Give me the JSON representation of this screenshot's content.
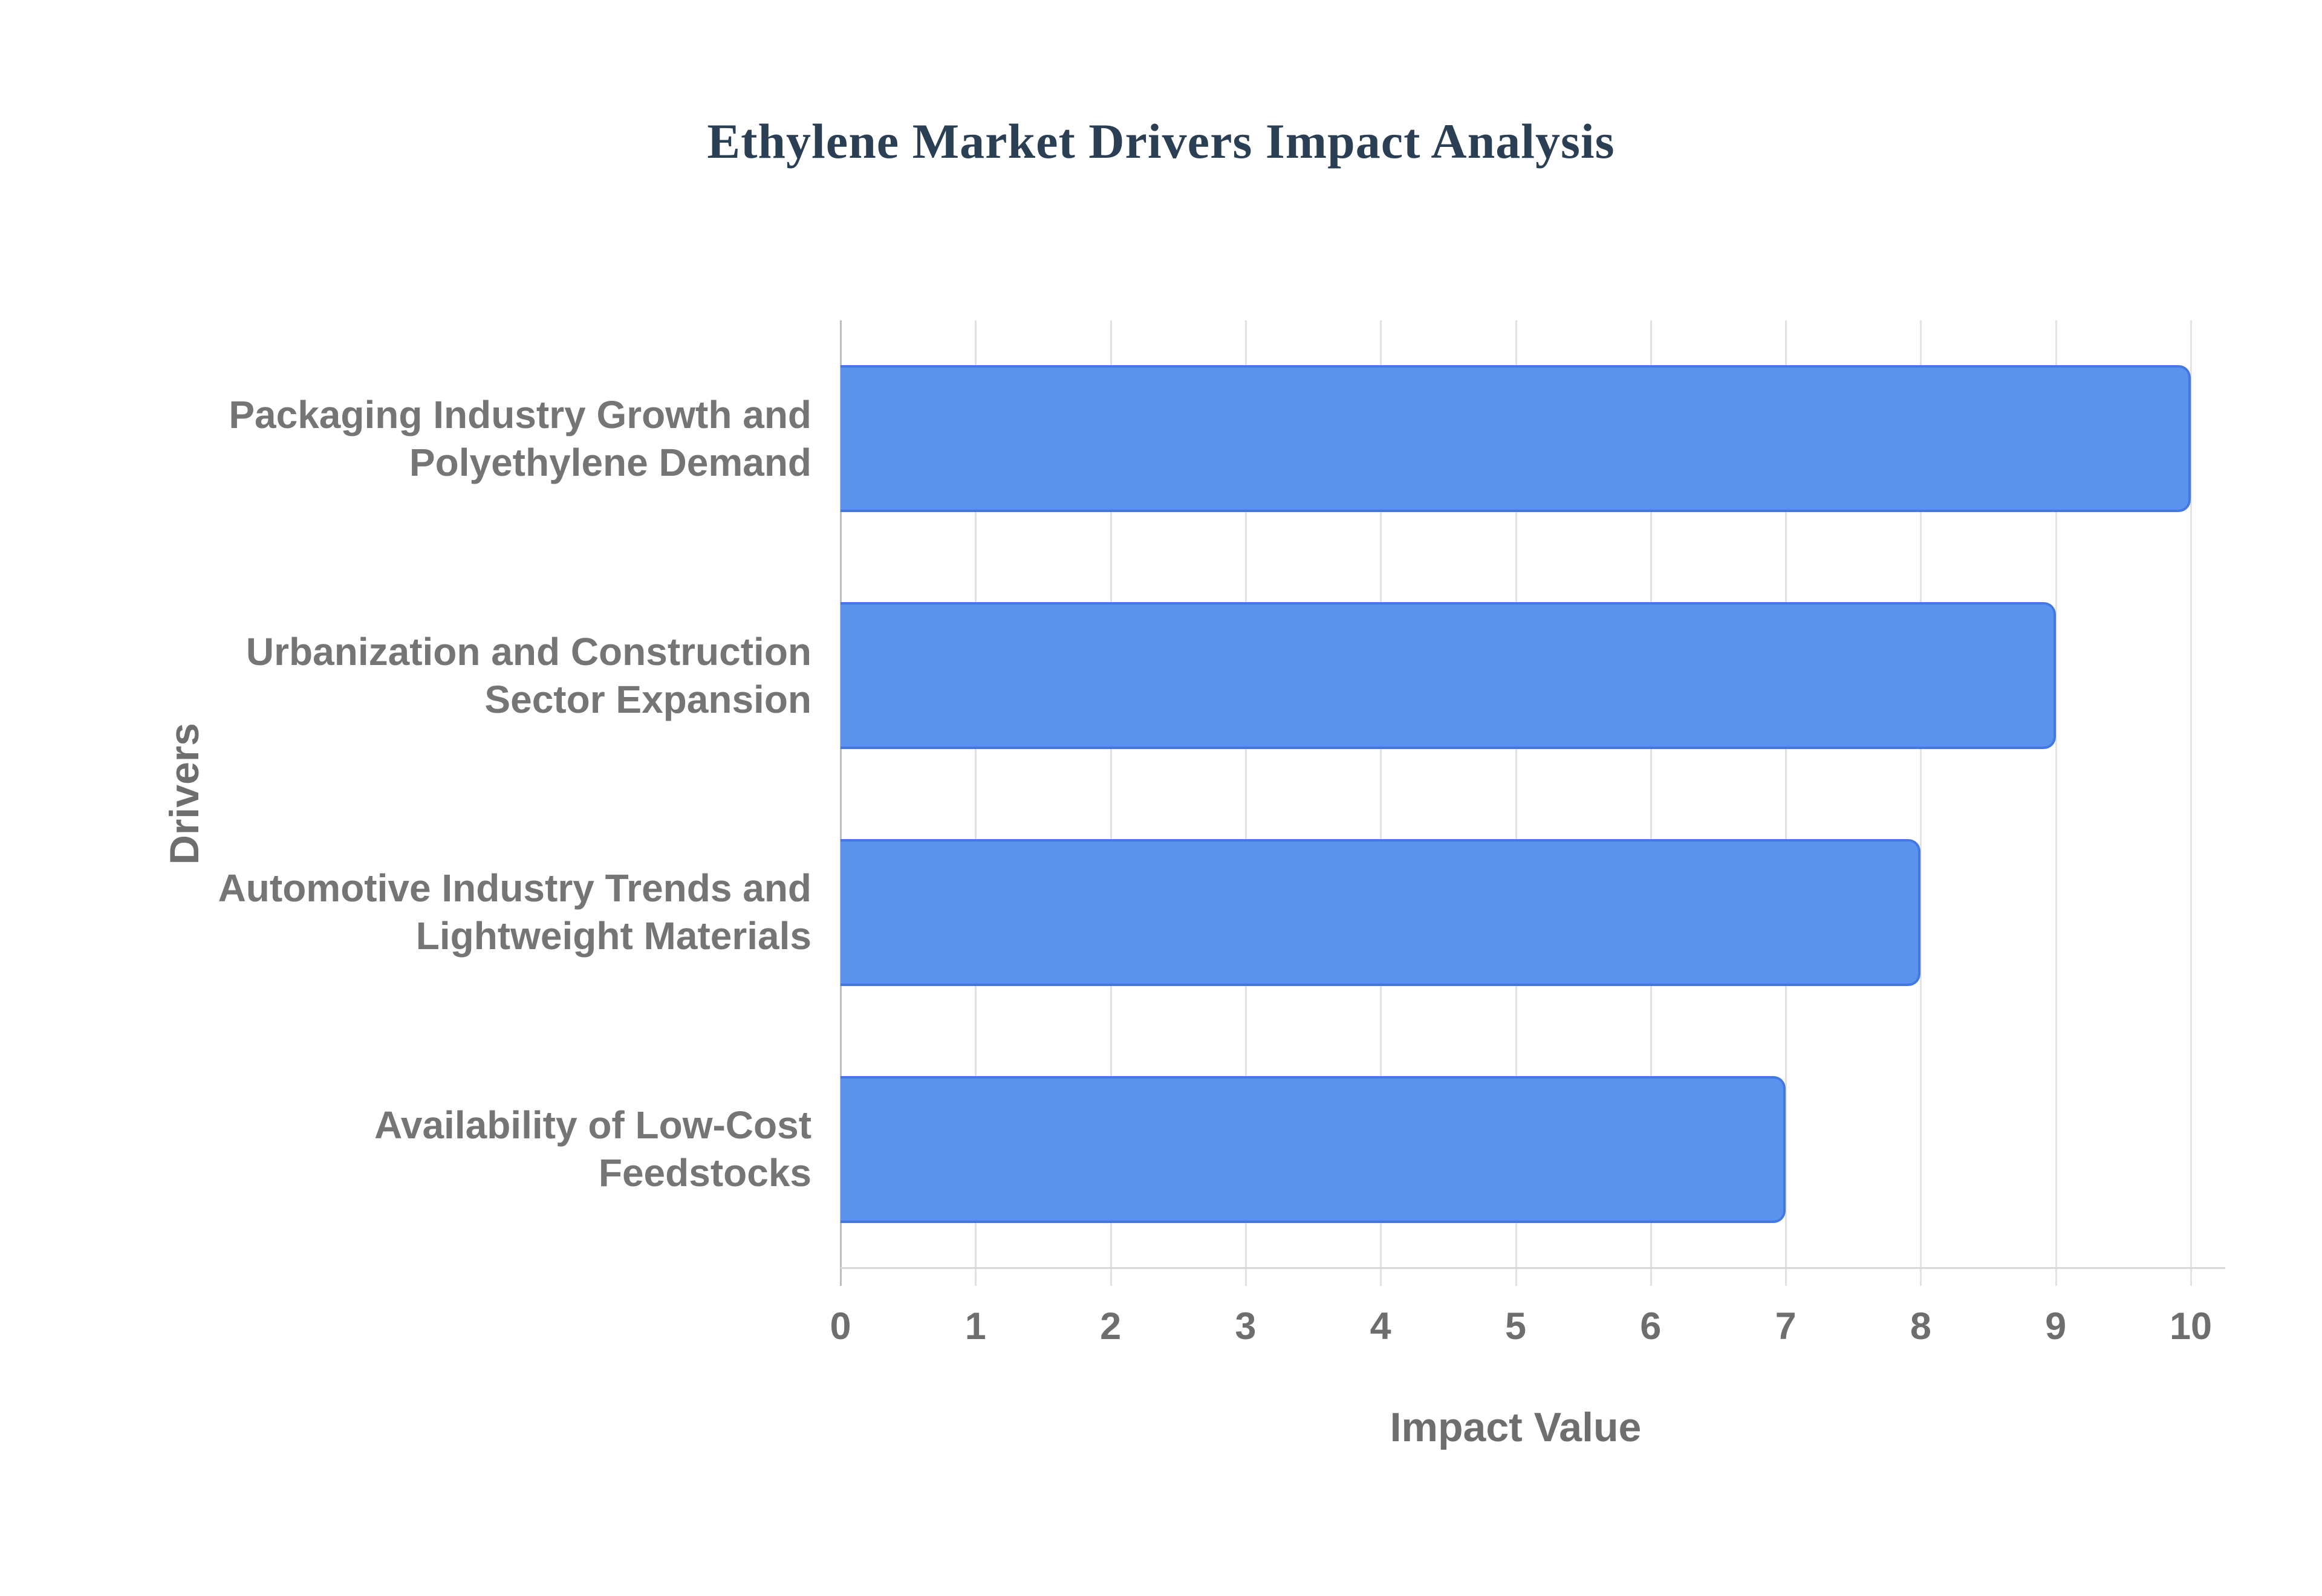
{
  "chart_data": {
    "type": "bar",
    "orientation": "horizontal",
    "title": "Ethylene Market Drivers Impact Analysis",
    "xlabel": "Impact Value",
    "ylabel": "Drivers",
    "categories": [
      "Packaging Industry Growth and Polyethylene Demand",
      "Urbanization and Construction Sector Expansion",
      "Automotive Industry Trends and Lightweight Materials",
      "Availability of Low-Cost Feedstocks"
    ],
    "categories_wrapped": [
      [
        "Packaging Industry Growth and",
        "Polyethylene Demand"
      ],
      [
        "Urbanization and Construction",
        "Sector Expansion"
      ],
      [
        "Automotive Industry Trends and",
        "Lightweight Materials"
      ],
      [
        "Availability of Low-Cost",
        "Feedstocks"
      ]
    ],
    "values": [
      10,
      9,
      8,
      7
    ],
    "xlim": [
      0,
      10
    ],
    "xticks": [
      0,
      1,
      2,
      3,
      4,
      5,
      6,
      7,
      8,
      9,
      10
    ],
    "grid": "vertical",
    "legend": "none",
    "colors": {
      "bar_fill": "#5b92ee",
      "bar_border": "#4377e2",
      "title_text": "#2b3f54",
      "axis_text": "#6e6e6e",
      "category_text": "#757575",
      "gridline": "#e2e2e2",
      "axis_line": "#d8d8d8",
      "background": "#ffffff"
    }
  }
}
